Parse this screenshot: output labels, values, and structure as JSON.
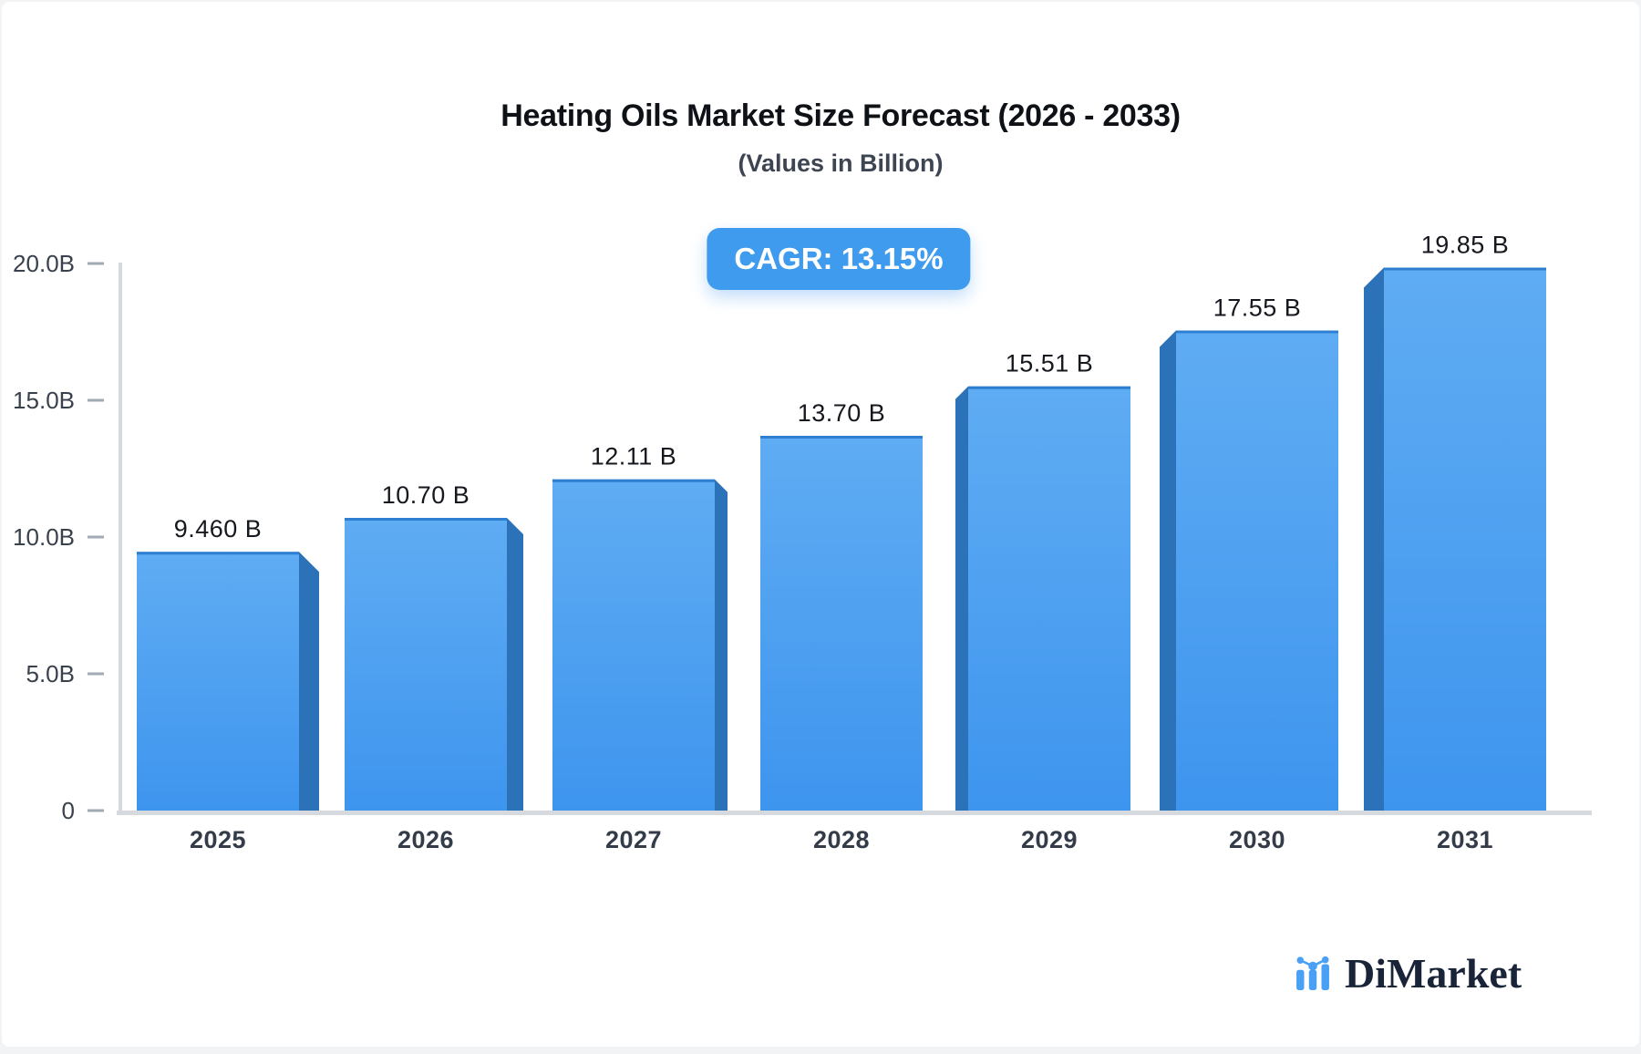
{
  "header": {
    "title": "Heating Oils Market Size Forecast (2026 - 2033)",
    "subtitle": "(Values in Billion)"
  },
  "badge": {
    "label": "CAGR: 13.15%"
  },
  "logo": {
    "text": "DiMarket"
  },
  "colors": {
    "badge_background": "#3f9bee",
    "bar_face_top": "#5facf3",
    "bar_face_bottom": "#3e95ee",
    "bar_side_facet": "#2c72b8",
    "bar_top_edge": "#2e7fd2",
    "axis_line": "#d6d9dd",
    "tick_dash": "#a2aab4",
    "logo_blue": "#4aa0f5",
    "logo_navy": "#1a2439"
  },
  "chart_data": {
    "type": "bar",
    "title": "Heating Oils Market Size Forecast (2026 - 2033)",
    "subtitle": "(Values in Billion)",
    "annotation": "CAGR: 13.15%",
    "categories": [
      "2025",
      "2026",
      "2027",
      "2028",
      "2029",
      "2030",
      "2031"
    ],
    "values": [
      9.46,
      10.7,
      12.11,
      13.7,
      15.51,
      17.55,
      19.85
    ],
    "value_labels": [
      "9.460 B",
      "10.70 B",
      "12.11 B",
      "13.70 B",
      "15.51 B",
      "17.55 B",
      "19.85 B"
    ],
    "xlabel": "",
    "ylabel": "",
    "ylim": [
      0,
      20
    ],
    "yticks": [
      {
        "value": 0,
        "label": "0"
      },
      {
        "value": 5,
        "label": "5.0B"
      },
      {
        "value": 10,
        "label": "10.0B"
      },
      {
        "value": 15,
        "label": "15.0B"
      },
      {
        "value": 20,
        "label": "20.0B"
      }
    ],
    "grid": false,
    "legend": "none",
    "style": "3d-beveled-bars, side facets face outward from center"
  }
}
